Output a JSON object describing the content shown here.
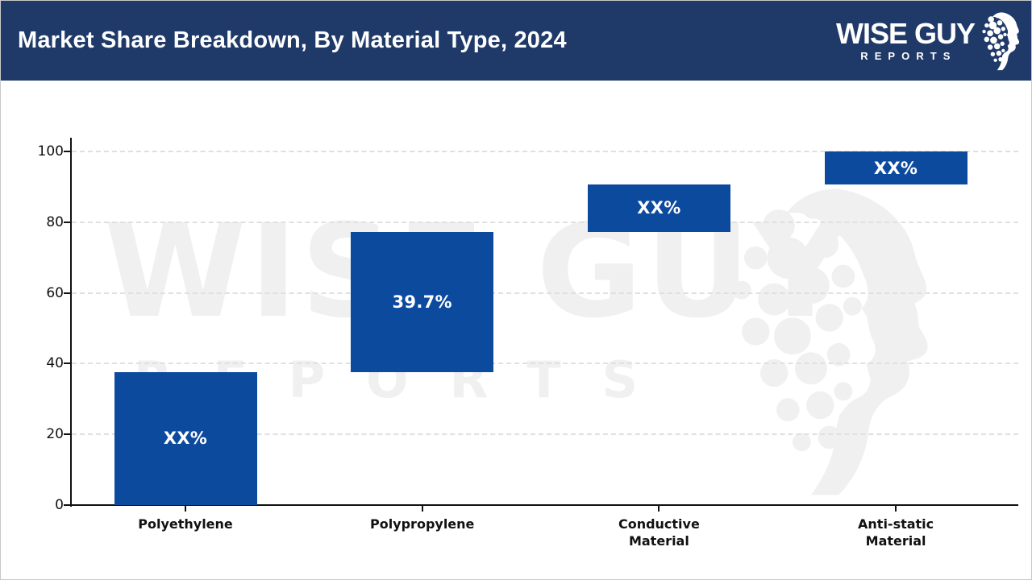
{
  "header": {
    "title": "Market Share Breakdown, By Material Type, 2024",
    "logo": {
      "line1": "WISE GUY",
      "line2": "REPORTS"
    }
  },
  "watermark": {
    "line1": "WISE GUY",
    "line2": "REPORTS"
  },
  "colors": {
    "header_bg": "#1f3a68",
    "bar": "#0c4a9e",
    "grid": "#e0e0e0",
    "axis": "#111111",
    "watermark": "#f0f0f0",
    "bar_label_text": "#ffffff",
    "title_text": "#ffffff"
  },
  "chart_data": {
    "type": "bar",
    "subtype": "waterfall",
    "title": "Market Share Breakdown, By Material Type, 2024",
    "xlabel": "",
    "ylabel": "",
    "categories": [
      "Polyethylene",
      "Polypropylene",
      "Conductive Material",
      "Anti-static Material"
    ],
    "segments": [
      {
        "category": "Polyethylene",
        "tick_label": "Polyethylene",
        "start": 0,
        "end": 37.6,
        "value": 37.6,
        "value_label": "XX%"
      },
      {
        "category": "Polypropylene",
        "tick_label": "Polypropylene",
        "start": 37.6,
        "end": 77.3,
        "value": 39.7,
        "value_label": "39.7%"
      },
      {
        "category": "Conductive Material",
        "tick_label": "Conductive\nMaterial",
        "start": 77.3,
        "end": 90.6,
        "value": 13.3,
        "value_label": "XX%"
      },
      {
        "category": "Anti-static Material",
        "tick_label": "Anti-static\nMaterial",
        "start": 90.6,
        "end": 100,
        "value": 9.4,
        "value_label": "XX%"
      }
    ],
    "yticks": [
      0,
      20,
      40,
      60,
      80,
      100
    ],
    "ylim": [
      0,
      104
    ],
    "grid": "horizontal-dashed",
    "legend": "none"
  }
}
